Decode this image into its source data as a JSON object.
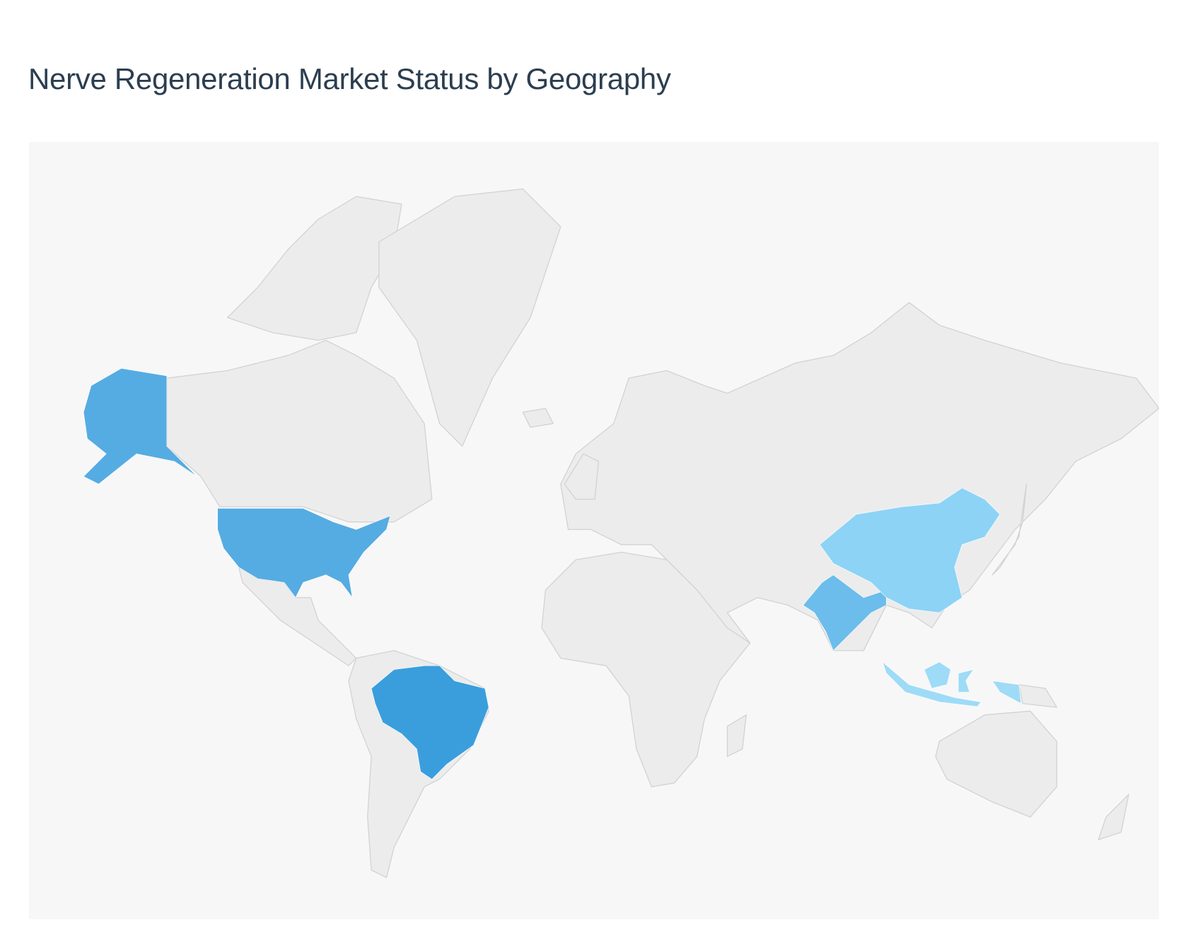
{
  "header": {
    "title": "Nerve Regeneration Market Status by Geography"
  },
  "chart_data": {
    "type": "choropleth-map",
    "title": "Nerve Regeneration Market Status by Geography",
    "base_land_color": "#ececec",
    "background_color": "#f7f7f7",
    "highlighted_regions": [
      {
        "region": "United States",
        "color": "#55ace2"
      },
      {
        "region": "Brazil",
        "color": "#3a9edd"
      },
      {
        "region": "India",
        "color": "#6cbdeb"
      },
      {
        "region": "China",
        "color": "#8dd3f6"
      },
      {
        "region": "Indonesia",
        "color": "#9edbf7"
      }
    ]
  }
}
